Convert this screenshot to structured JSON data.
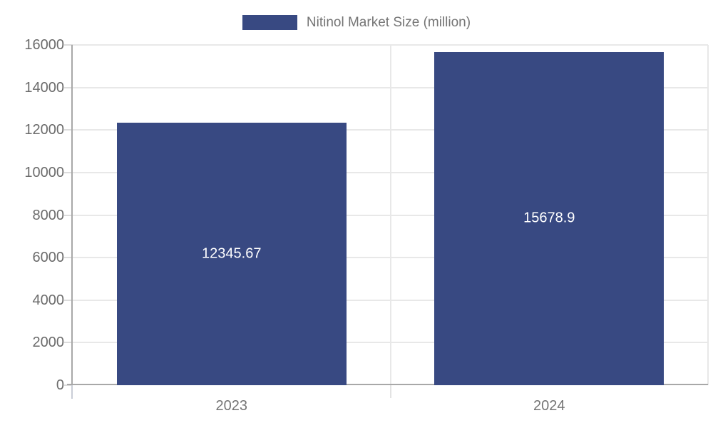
{
  "legend": {
    "label": "Nitinol Market Size (million)"
  },
  "chart_data": {
    "type": "bar",
    "title": "Nitinol Market Size (million)",
    "categories": [
      "2023",
      "2024"
    ],
    "series": [
      {
        "name": "Nitinol Market Size (million)",
        "values": [
          12345.67,
          15678.9
        ]
      }
    ],
    "value_labels": [
      "12345.67",
      "15678.9"
    ],
    "xlabel": "",
    "ylabel": "",
    "ylim": [
      0,
      16000
    ],
    "yticks": [
      0,
      2000,
      4000,
      6000,
      8000,
      10000,
      12000,
      14000,
      16000
    ],
    "grid": true,
    "legend_position": "top-center",
    "colors": {
      "bar": "#384982",
      "grid": "#e8e8e8",
      "axis": "#a8a8a8",
      "y_label": "#6b6b6b",
      "x_label": "#757575",
      "legend_text": "#757575",
      "value_label": "#ffffff"
    }
  }
}
